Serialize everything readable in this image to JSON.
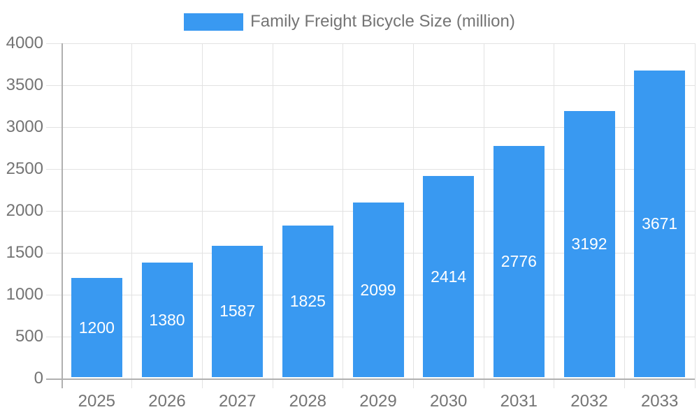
{
  "chart_data": {
    "type": "bar",
    "title": "Family Freight Bicycle Size (million)",
    "legend_position": "top",
    "categories": [
      "2025",
      "2026",
      "2027",
      "2028",
      "2029",
      "2030",
      "2031",
      "2032",
      "2033"
    ],
    "values": [
      1200,
      1380,
      1587,
      1825,
      2099,
      2414,
      2776,
      3192,
      3671
    ],
    "xlabel": "",
    "ylabel": "",
    "ylim": [
      0,
      4000
    ],
    "yticks": [
      0,
      500,
      1000,
      1500,
      2000,
      2500,
      3000,
      3500,
      4000
    ],
    "grid": true,
    "value_label_position": "inside-center",
    "colors": {
      "bar": "#3999f1",
      "value_label": "#ffffff",
      "axis_text": "#747474",
      "gridline": "#e2e2e2",
      "axis_line": "#b0b0b0",
      "background": "#ffffff"
    }
  }
}
